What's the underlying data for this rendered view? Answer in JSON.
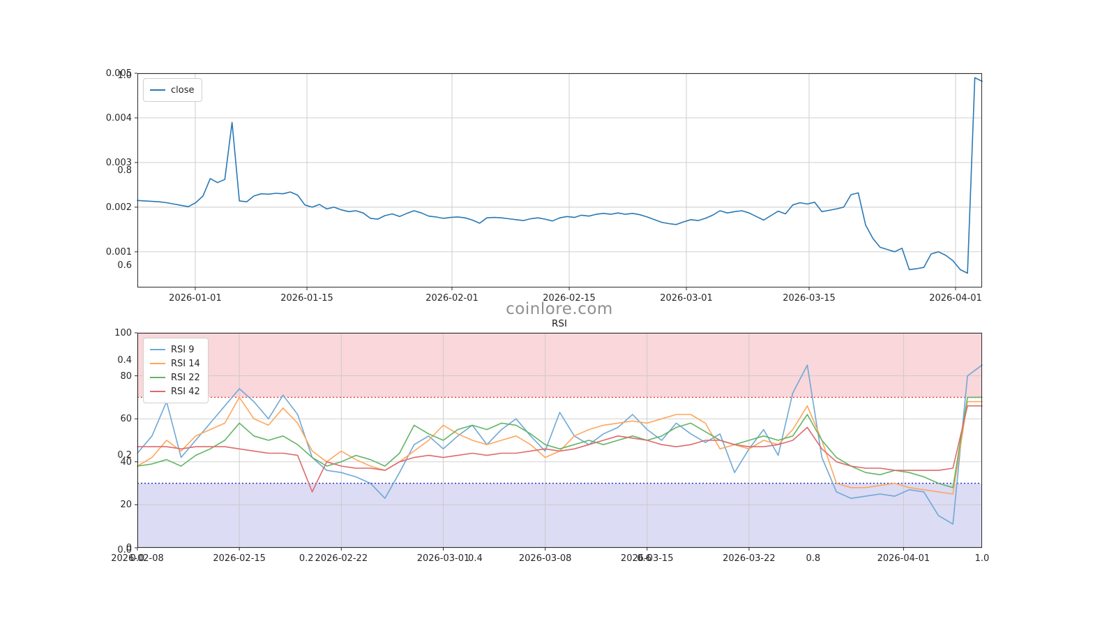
{
  "watermark": "coinlore.com",
  "subtitle": "RSI",
  "overlay_axis": {
    "y_tick_labels": [
      "1.0",
      "0.8",
      "0.6",
      "0.4",
      "0.2",
      "0.0"
    ],
    "x_tick_labels": [
      "0.0",
      "0.2",
      "0.4",
      "0.6",
      "0.8",
      "1.0"
    ]
  },
  "chart_data": [
    {
      "id": "price",
      "type": "line",
      "title": "",
      "ylabel": "",
      "ylim": [
        0.0002,
        0.005
      ],
      "grid": true,
      "legend_position": "top-left",
      "y_ticks": [
        {
          "v": 0.001,
          "label": "0.001"
        },
        {
          "v": 0.002,
          "label": "0.002"
        },
        {
          "v": 0.003,
          "label": "0.003"
        },
        {
          "v": 0.004,
          "label": "0.004"
        },
        {
          "v": 0.005,
          "label": "0.005"
        }
      ],
      "x_ticks": [
        {
          "pos": 0.0685,
          "label": "2026-01-01"
        },
        {
          "pos": 0.2007,
          "label": "2026-01-15"
        },
        {
          "pos": 0.3724,
          "label": "2026-02-01"
        },
        {
          "pos": 0.5112,
          "label": "2026-02-15"
        },
        {
          "pos": 0.6499,
          "label": "2026-03-01"
        },
        {
          "pos": 0.7952,
          "label": "2026-03-15"
        },
        {
          "pos": 0.9686,
          "label": "2026-04-01"
        }
      ],
      "series": [
        {
          "name": "close",
          "color": "#2878b5",
          "values": [
            0.00215,
            0.00214,
            0.00213,
            0.00212,
            0.0021,
            0.00207,
            0.00204,
            0.00201,
            0.0021,
            0.00225,
            0.00264,
            0.00255,
            0.00262,
            0.0039,
            0.00214,
            0.00212,
            0.00225,
            0.0023,
            0.00229,
            0.00231,
            0.0023,
            0.00234,
            0.00227,
            0.00205,
            0.002,
            0.00206,
            0.00196,
            0.002,
            0.00194,
            0.0019,
            0.00192,
            0.00187,
            0.00175,
            0.00173,
            0.00181,
            0.00185,
            0.00179,
            0.00186,
            0.00192,
            0.00187,
            0.0018,
            0.00178,
            0.00175,
            0.00177,
            0.00178,
            0.00176,
            0.00171,
            0.00164,
            0.00176,
            0.00177,
            0.00176,
            0.00174,
            0.00172,
            0.0017,
            0.00174,
            0.00176,
            0.00173,
            0.00169,
            0.00176,
            0.00179,
            0.00177,
            0.00182,
            0.0018,
            0.00184,
            0.00186,
            0.00184,
            0.00187,
            0.00184,
            0.00186,
            0.00183,
            0.00178,
            0.00172,
            0.00166,
            0.00163,
            0.00161,
            0.00167,
            0.00172,
            0.0017,
            0.00175,
            0.00182,
            0.00192,
            0.00187,
            0.0019,
            0.00192,
            0.00187,
            0.00179,
            0.00171,
            0.00181,
            0.00191,
            0.00185,
            0.00205,
            0.0021,
            0.00207,
            0.00211,
            0.0019,
            0.00193,
            0.00196,
            0.002,
            0.00228,
            0.00232,
            0.0016,
            0.0013,
            0.0011,
            0.00105,
            0.001,
            0.00108,
            0.0006,
            0.00062,
            0.00065,
            0.00095,
            0.001,
            0.00092,
            0.0008,
            0.0006,
            0.00052,
            0.0049,
            0.00482
          ]
        }
      ]
    },
    {
      "id": "rsi",
      "type": "line",
      "title": "RSI",
      "ylabel": "",
      "ylim": [
        0,
        100
      ],
      "grid": true,
      "legend_position": "top-left",
      "y_ticks": [
        {
          "v": 0,
          "label": "0"
        },
        {
          "v": 20,
          "label": "20"
        },
        {
          "v": 40,
          "label": "40"
        },
        {
          "v": 60,
          "label": "60"
        },
        {
          "v": 80,
          "label": "80"
        },
        {
          "v": 100,
          "label": "100"
        }
      ],
      "x_ticks": [
        {
          "pos": 0.0,
          "label": "2026-02-08"
        },
        {
          "pos": 0.1207,
          "label": "2026-02-15"
        },
        {
          "pos": 0.2414,
          "label": "2026-02-22"
        },
        {
          "pos": 0.3621,
          "label": "2026-03-01"
        },
        {
          "pos": 0.4828,
          "label": "2026-03-08"
        },
        {
          "pos": 0.6034,
          "label": "2026-03-15"
        },
        {
          "pos": 0.7241,
          "label": "2026-03-22"
        },
        {
          "pos": 0.907,
          "label": "2026-04-01"
        }
      ],
      "bands": [
        {
          "from": 70,
          "to": 100,
          "color": "#f9d7da"
        },
        {
          "from": 0,
          "to": 30,
          "color": "#dcdcf4"
        }
      ],
      "hlines": [
        {
          "value": 70,
          "color": "#e03a3a"
        },
        {
          "value": 30,
          "color": "#2525b8"
        }
      ],
      "series": [
        {
          "name": "RSI 9",
          "color": "#6fa8d6",
          "values": [
            44,
            52,
            68,
            42,
            50,
            58,
            66,
            74,
            68,
            60,
            71,
            62,
            42,
            36,
            35,
            33,
            30,
            23,
            35,
            48,
            52,
            46,
            52,
            57,
            48,
            55,
            60,
            52,
            45,
            63,
            52,
            48,
            53,
            56,
            62,
            55,
            50,
            58,
            53,
            49,
            53,
            35,
            46,
            55,
            43,
            72,
            85,
            42,
            26,
            23,
            24,
            25,
            24,
            27,
            26,
            15,
            11,
            80,
            85
          ]
        },
        {
          "name": "RSI 14",
          "color": "#ffa65c",
          "values": [
            38,
            42,
            50,
            45,
            52,
            55,
            58,
            70,
            60,
            57,
            65,
            58,
            45,
            40,
            45,
            41,
            38,
            36,
            40,
            45,
            50,
            57,
            53,
            50,
            48,
            50,
            52,
            48,
            42,
            45,
            52,
            55,
            57,
            58,
            59,
            58,
            60,
            62,
            62,
            58,
            46,
            48,
            46,
            50,
            48,
            55,
            66,
            50,
            30,
            28,
            28,
            29,
            30,
            28,
            27,
            26,
            25,
            68,
            68
          ]
        },
        {
          "name": "RSI 22",
          "color": "#62b565",
          "values": [
            38,
            39,
            41,
            38,
            43,
            46,
            50,
            58,
            52,
            50,
            52,
            48,
            42,
            38,
            40,
            43,
            41,
            38,
            44,
            57,
            53,
            50,
            55,
            57,
            55,
            58,
            57,
            53,
            48,
            46,
            48,
            50,
            48,
            50,
            52,
            50,
            52,
            56,
            58,
            54,
            50,
            48,
            50,
            52,
            50,
            52,
            62,
            50,
            42,
            38,
            35,
            34,
            36,
            35,
            33,
            30,
            28,
            70,
            70
          ]
        },
        {
          "name": "RSI 42",
          "color": "#de6a6d",
          "values": [
            47,
            47,
            47,
            46,
            47,
            47,
            47,
            46,
            45,
            44,
            44,
            43,
            26,
            40,
            38,
            37,
            37,
            36,
            40,
            42,
            43,
            42,
            43,
            44,
            43,
            44,
            44,
            45,
            46,
            45,
            46,
            48,
            50,
            52,
            51,
            50,
            48,
            47,
            48,
            50,
            50,
            48,
            47,
            47,
            48,
            50,
            56,
            46,
            40,
            38,
            37,
            37,
            36,
            36,
            36,
            36,
            37,
            66,
            66
          ]
        }
      ]
    }
  ]
}
